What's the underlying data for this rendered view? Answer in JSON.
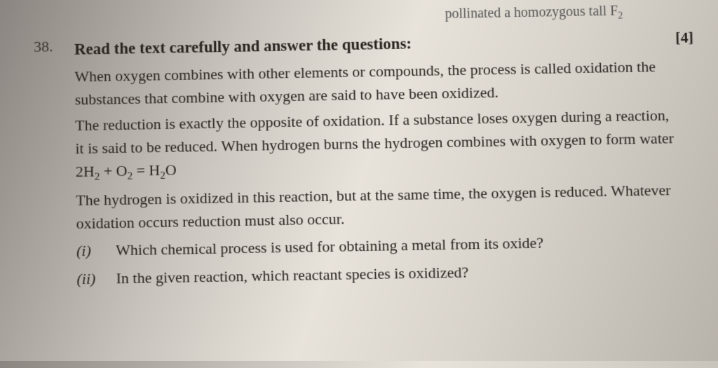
{
  "document": {
    "background_gradient": [
      "#8a8580",
      "#c8c3bc",
      "#e8e3da",
      "#d8d3ca",
      "#b8b3aa"
    ],
    "text_color": "#2a2520",
    "font_family": "Georgia, Times New Roman, serif",
    "base_fontsize": 22,
    "heading_fontsize": 23,
    "line_height": 1.55
  },
  "top_fragment": {
    "prefix": "pollinated a homozygous tall F",
    "sub": "2"
  },
  "question": {
    "number": "38.",
    "heading": "Read the text carefully and answer the questions:",
    "marks": "[4]",
    "paragraphs": {
      "p1": "When oxygen combines with other elements or compounds, the process is called oxidation the substances that combine with oxygen are said to have been oxidized.",
      "p2_pre": "The reduction is exactly the opposite of oxidation. If a substance loses oxygen during a reaction, it is said to be reduced. When hydrogen burns the hydrogen combines with oxygen to form water ",
      "p2_formula": {
        "h2_coeff": "2H",
        "h2_sub": "2",
        "plus": " + O",
        "o2_sub": "2",
        "eq": " = H",
        "h2o_sub": "2",
        "o": "O"
      },
      "p3": "The hydrogen is oxidized in this reaction, but at the same time, the oxygen is reduced. Whatever oxidation occurs reduction must also occur."
    },
    "subquestions": [
      {
        "label": "(i)",
        "text": "Which chemical process is used for obtaining a metal from its oxide?"
      },
      {
        "label": "(ii)",
        "text": "In the given reaction, which reactant species is oxidized?"
      }
    ]
  }
}
